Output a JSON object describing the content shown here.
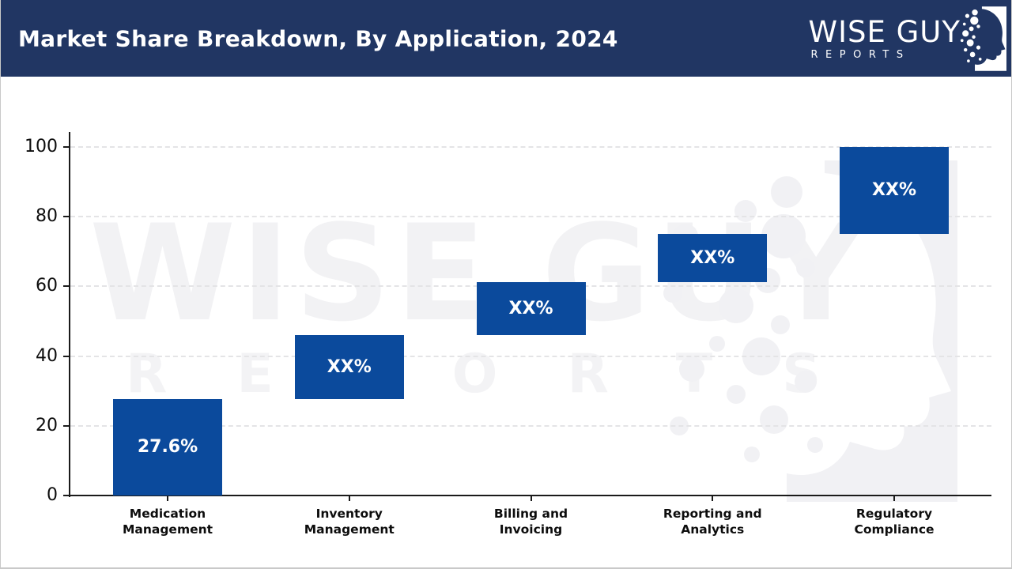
{
  "header": {
    "title": "Market Share Breakdown, By Application, 2024",
    "brand": {
      "line1": "WISE GUY",
      "line2": "REPORTS"
    }
  },
  "watermark": {
    "line1": "WISE GUY",
    "line2": "REPORTS"
  },
  "chart_data": {
    "type": "bar",
    "subtype": "waterfall",
    "title": "Market Share Breakdown, By Application, 2024",
    "xlabel": "",
    "ylabel": "",
    "categories": [
      "Medication\nManagement",
      "Inventory\nManagement",
      "Billing and\nInvoicing",
      "Reporting and\nAnalytics",
      "Regulatory\nCompliance"
    ],
    "segments": [
      {
        "start": 0,
        "end": 27.6,
        "label": "27.6%"
      },
      {
        "start": 27.6,
        "end": 46.0,
        "label": "XX%"
      },
      {
        "start": 46.0,
        "end": 61.2,
        "label": "XX%"
      },
      {
        "start": 61.2,
        "end": 75.0,
        "label": "XX%"
      },
      {
        "start": 75.0,
        "end": 100.0,
        "label": "XX%"
      }
    ],
    "ylim": [
      0,
      100
    ],
    "yticks": [
      0,
      20,
      40,
      60,
      80,
      100
    ],
    "grid": "horizontal-dashed",
    "legend": "none",
    "bar_color": "#0b4a9c",
    "label_color": "#ffffff",
    "header_color": "#213663",
    "gridline_color": "#e4e4e6"
  }
}
